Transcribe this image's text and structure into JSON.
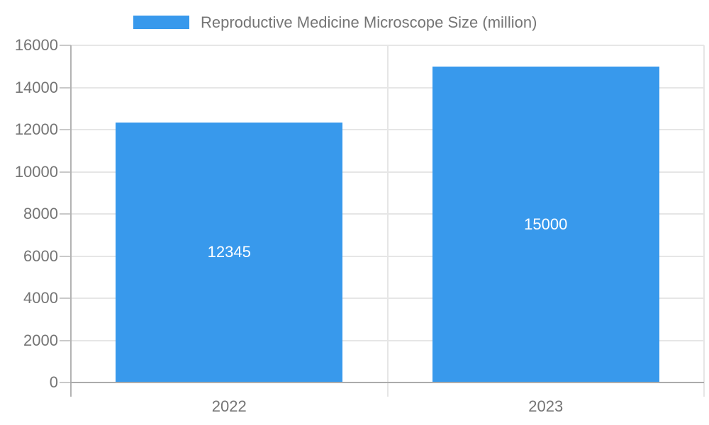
{
  "legend": {
    "label": "Reproductive Medicine Microscope Size (million)",
    "swatch_color": "#3899ec"
  },
  "chart_data": {
    "type": "bar",
    "title": "Reproductive Medicine Microscope Size (million)",
    "categories": [
      "2022",
      "2023"
    ],
    "series": [
      {
        "name": "Reproductive Medicine Microscope Size (million)",
        "color": "#3899ec",
        "values": [
          12345,
          15000
        ]
      }
    ],
    "value_labels": [
      "12345",
      "15000"
    ],
    "xlabel": "",
    "ylabel": "",
    "ylim": [
      0,
      16000
    ],
    "yticks": [
      0,
      2000,
      4000,
      6000,
      8000,
      10000,
      12000,
      14000,
      16000
    ],
    "grid": true,
    "legend_position": "top",
    "colors": {
      "bar": "#3899ec",
      "axis_text": "#757575",
      "value_text": "#ffffff",
      "gridline": "#e6e6e6",
      "x_axis_line": "#ababab",
      "y_axis_line": "#b3b3b3",
      "tick": "#c9c9c9",
      "background": "#ffffff"
    }
  }
}
